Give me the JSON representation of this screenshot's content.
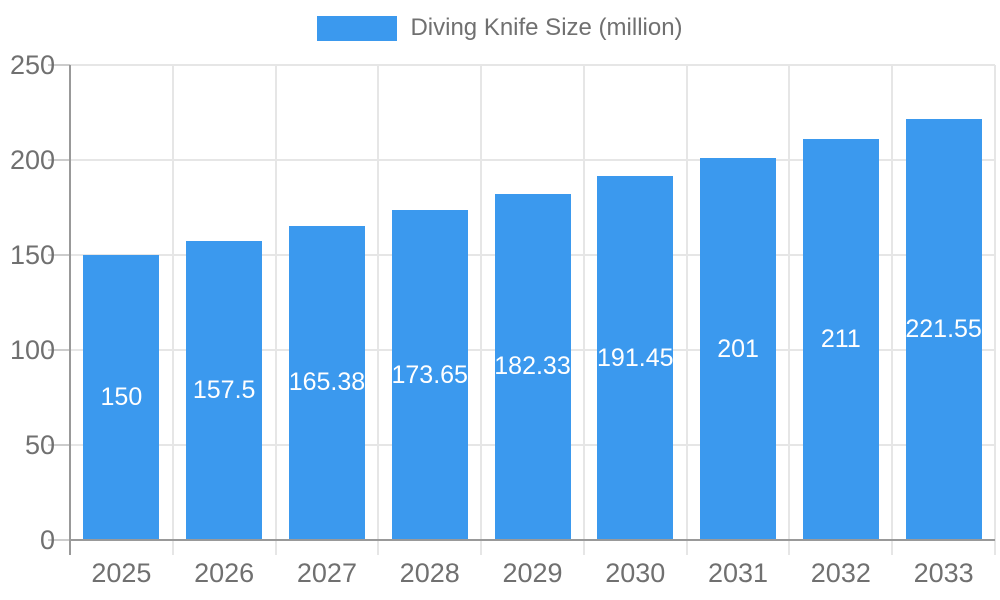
{
  "chart_data": {
    "type": "bar",
    "title": "Diving Knife Size (million)",
    "legend": {
      "position": "top",
      "label": "Diving Knife Size (million)"
    },
    "categories": [
      "2025",
      "2026",
      "2027",
      "2028",
      "2029",
      "2030",
      "2031",
      "2032",
      "2033"
    ],
    "values": [
      150,
      157.5,
      165.38,
      173.65,
      182.33,
      191.45,
      201,
      211,
      221.55
    ],
    "value_labels": [
      "150",
      "157.5",
      "165.38",
      "173.65",
      "182.33",
      "191.45",
      "201",
      "211",
      "221.55"
    ],
    "xlabel": "",
    "ylabel": "",
    "ylim": [
      0,
      250
    ],
    "yticks": [
      0,
      50,
      100,
      150,
      200,
      250
    ],
    "grid": true,
    "colors": {
      "bar": "#3B99EE",
      "grid": "#E6E6E6",
      "axis": "#999999",
      "tick": "#CCCCCC",
      "text": "#707070",
      "value_label": "#FFFFFF",
      "background": "#FFFFFF"
    }
  }
}
